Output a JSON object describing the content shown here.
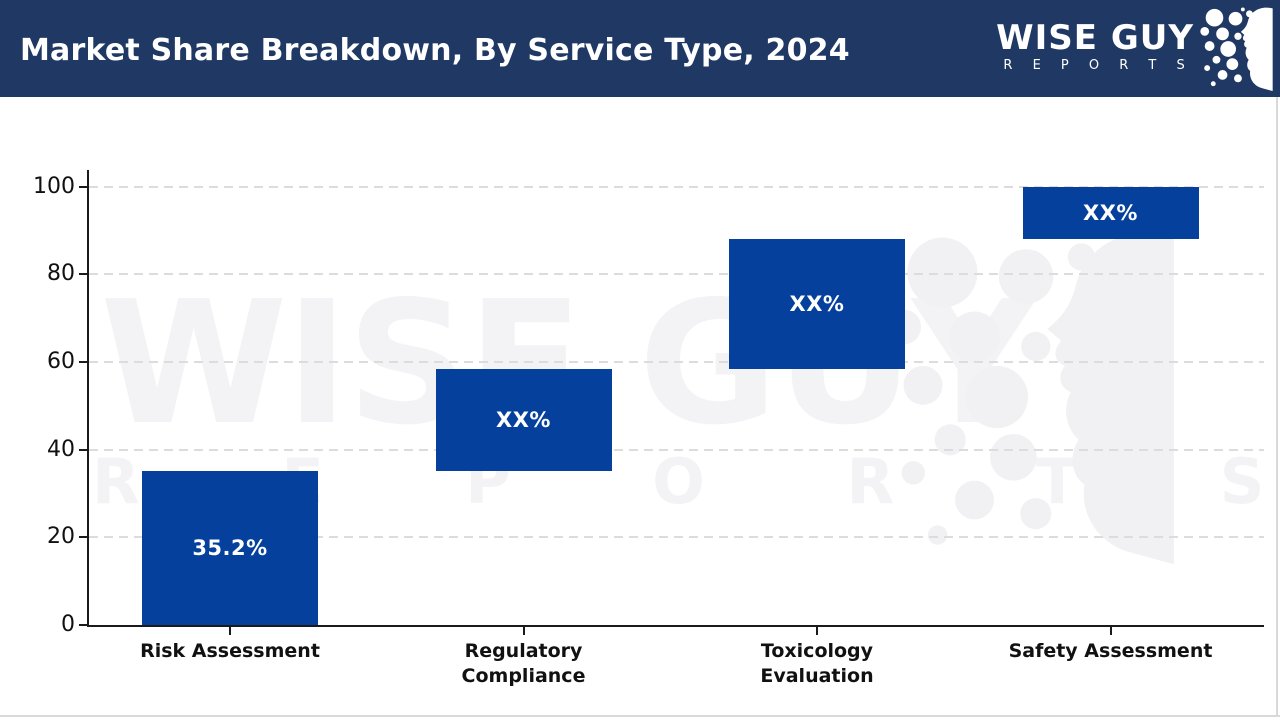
{
  "header": {
    "title": "Market Share Breakdown, By Service Type, 2024",
    "logo_line1": "WISE GUY",
    "logo_line2": "R E P O R T S"
  },
  "watermark": {
    "line1": "WISE GUY",
    "line2": "R E P O R T S"
  },
  "chart_data": {
    "type": "bar",
    "subtype": "floating-waterfall",
    "title": "Market Share Breakdown, By Service Type, 2024",
    "categories": [
      "Risk Assessment",
      "Regulatory\nCompliance",
      "Toxicology\nEvaluation",
      "Safety Assessment"
    ],
    "bars": [
      {
        "category": "Risk Assessment",
        "start": 0,
        "end": 35.2,
        "label": "35.2%"
      },
      {
        "category": "Regulatory Compliance",
        "start": 35.2,
        "end": 58.4,
        "label": "XX%"
      },
      {
        "category": "Toxicology Evaluation",
        "start": 58.4,
        "end": 88.0,
        "label": "XX%"
      },
      {
        "category": "Safety Assessment",
        "start": 88.0,
        "end": 100.0,
        "label": "XX%"
      }
    ],
    "yticks": [
      0,
      20,
      40,
      60,
      80,
      100
    ],
    "ylim": [
      0,
      104
    ],
    "xlabel": "",
    "ylabel": "",
    "grid": "dashed-horizontal",
    "legend": "none",
    "bar_color": "#05419c",
    "bar_label_color": "#ffffff"
  },
  "colors": {
    "header_bg": "#1f3864",
    "bar": "#05419c",
    "grid": "#dcdcdc",
    "axis": "#1a1a1a",
    "watermark": "#f3f3f5"
  }
}
